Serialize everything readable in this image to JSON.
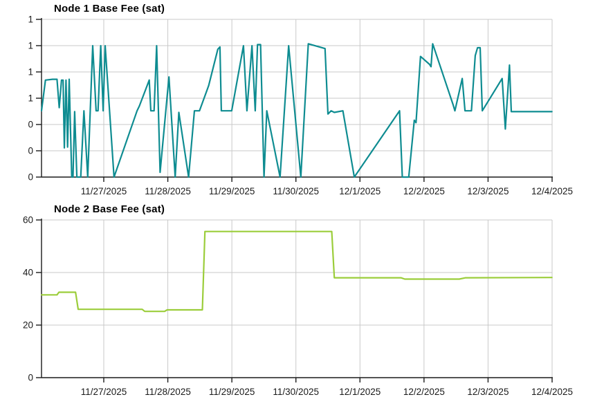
{
  "style": {
    "background": "#ffffff",
    "grid_color": "#c9c9c9",
    "axis_color": "#1a1a1a",
    "text_color": "#1a1a1a",
    "node1_line_color": "#0e8c91",
    "node2_line_color": "#9bcd3a"
  },
  "chart_data": [
    {
      "type": "line",
      "title": "Node 1 Base Fee (sat)",
      "xlabel": "",
      "ylabel": "",
      "legend": "none",
      "grid": "on",
      "x_unit": "days since 11/26/2025 00:00",
      "xlim": [
        0.028,
        8.0
      ],
      "ylim": [
        0,
        1
      ],
      "line_color_key": "node1_line_color",
      "x_ticks": [
        {
          "v": 1,
          "label": "11/27/2025"
        },
        {
          "v": 2,
          "label": "11/28/2025"
        },
        {
          "v": 3,
          "label": "11/29/2025"
        },
        {
          "v": 4,
          "label": "11/30/2025"
        },
        {
          "v": 5,
          "label": "12/1/2025"
        },
        {
          "v": 6,
          "label": "12/2/2025"
        },
        {
          "v": 7,
          "label": "12/3/2025"
        },
        {
          "v": 8,
          "label": "12/4/2025"
        }
      ],
      "y_ticks": [
        {
          "v": 0,
          "label": "0"
        },
        {
          "v": 0.1667,
          "label": "0"
        },
        {
          "v": 0.3333,
          "label": "0"
        },
        {
          "v": 0.5,
          "label": "1"
        },
        {
          "v": 0.6667,
          "label": "1"
        },
        {
          "v": 0.8333,
          "label": "1"
        },
        {
          "v": 1,
          "label": "1"
        }
      ],
      "points": [
        [
          0.028,
          0.42
        ],
        [
          0.09,
          0.615
        ],
        [
          0.2,
          0.62
        ],
        [
          0.27,
          0.62
        ],
        [
          0.305,
          0.44
        ],
        [
          0.34,
          0.615
        ],
        [
          0.365,
          0.615
        ],
        [
          0.385,
          0.185
        ],
        [
          0.41,
          0.615
        ],
        [
          0.435,
          0.19
        ],
        [
          0.46,
          0.62
        ],
        [
          0.5,
          0.0
        ],
        [
          0.52,
          0.0
        ],
        [
          0.545,
          0.415
        ],
        [
          0.58,
          0.0
        ],
        [
          0.64,
          0.0
        ],
        [
          0.69,
          0.42
        ],
        [
          0.75,
          0.0
        ],
        [
          0.827,
          0.833
        ],
        [
          0.88,
          0.42
        ],
        [
          0.91,
          0.42
        ],
        [
          0.953,
          0.833
        ],
        [
          0.99,
          0.42
        ],
        [
          1.022,
          0.833
        ],
        [
          1.16,
          0.0
        ],
        [
          1.52,
          0.42
        ],
        [
          1.555,
          0.45
        ],
        [
          1.71,
          0.615
        ],
        [
          1.735,
          0.42
        ],
        [
          1.785,
          0.42
        ],
        [
          1.826,
          0.833
        ],
        [
          1.88,
          0.03
        ],
        [
          2.018,
          0.635
        ],
        [
          2.115,
          0.0
        ],
        [
          2.172,
          0.41
        ],
        [
          2.325,
          0.0
        ],
        [
          2.415,
          0.42
        ],
        [
          2.494,
          0.42
        ],
        [
          2.638,
          0.58
        ],
        [
          2.78,
          0.81
        ],
        [
          2.814,
          0.825
        ],
        [
          2.836,
          0.42
        ],
        [
          2.998,
          0.42
        ],
        [
          3.181,
          0.833
        ],
        [
          3.235,
          0.42
        ],
        [
          3.314,
          0.833
        ],
        [
          3.365,
          0.42
        ],
        [
          3.4,
          0.84
        ],
        [
          3.448,
          0.84
        ],
        [
          3.502,
          0.0
        ],
        [
          3.545,
          0.42
        ],
        [
          3.753,
          0.0
        ],
        [
          3.886,
          0.833
        ],
        [
          4.077,
          0.0
        ],
        [
          4.193,
          0.845
        ],
        [
          4.455,
          0.815
        ],
        [
          4.5,
          0.4
        ],
        [
          4.55,
          0.42
        ],
        [
          4.6,
          0.41
        ],
        [
          4.733,
          0.42
        ],
        [
          4.912,
          0.0
        ],
        [
          5.618,
          0.42
        ],
        [
          5.661,
          0.0
        ],
        [
          5.762,
          0.0
        ],
        [
          5.848,
          0.36
        ],
        [
          5.875,
          0.345
        ],
        [
          5.945,
          0.765
        ],
        [
          6.086,
          0.715
        ],
        [
          6.11,
          0.7
        ],
        [
          6.136,
          0.845
        ],
        [
          6.453,
          0.46
        ],
        [
          6.482,
          0.42
        ],
        [
          6.597,
          0.625
        ],
        [
          6.64,
          0.42
        ],
        [
          6.741,
          0.42
        ],
        [
          6.8,
          0.77
        ],
        [
          6.835,
          0.82
        ],
        [
          6.877,
          0.82
        ],
        [
          6.91,
          0.42
        ],
        [
          7.22,
          0.625
        ],
        [
          7.27,
          0.305
        ],
        [
          7.335,
          0.71
        ],
        [
          7.363,
          0.415
        ],
        [
          7.997,
          0.415
        ]
      ]
    },
    {
      "type": "line",
      "title": "Node 2 Base Fee (sat)",
      "xlabel": "",
      "ylabel": "",
      "legend": "none",
      "grid": "on",
      "x_unit": "days since 11/26/2025 00:00",
      "xlim": [
        0.028,
        8.0
      ],
      "ylim": [
        0,
        60
      ],
      "line_color_key": "node2_line_color",
      "x_ticks": [
        {
          "v": 1,
          "label": "11/27/2025"
        },
        {
          "v": 2,
          "label": "11/28/2025"
        },
        {
          "v": 3,
          "label": "11/29/2025"
        },
        {
          "v": 4,
          "label": "11/30/2025"
        },
        {
          "v": 5,
          "label": "12/1/2025"
        },
        {
          "v": 6,
          "label": "12/2/2025"
        },
        {
          "v": 7,
          "label": "12/3/2025"
        },
        {
          "v": 8,
          "label": "12/4/2025"
        }
      ],
      "y_ticks": [
        {
          "v": 0,
          "label": "0"
        },
        {
          "v": 20,
          "label": "20"
        },
        {
          "v": 40,
          "label": "40"
        },
        {
          "v": 60,
          "label": "60"
        }
      ],
      "points": [
        [
          0.028,
          31.5
        ],
        [
          0.27,
          31.5
        ],
        [
          0.3,
          32.5
        ],
        [
          0.56,
          32.5
        ],
        [
          0.6,
          26
        ],
        [
          1.6,
          26
        ],
        [
          1.64,
          25.2
        ],
        [
          1.95,
          25.2
        ],
        [
          1.99,
          25.8
        ],
        [
          2.54,
          25.8
        ],
        [
          2.58,
          55.6
        ],
        [
          4.56,
          55.6
        ],
        [
          4.6,
          38
        ],
        [
          5.64,
          38
        ],
        [
          5.7,
          37.5
        ],
        [
          6.55,
          37.5
        ],
        [
          6.65,
          38
        ],
        [
          7.997,
          38.1
        ]
      ]
    }
  ]
}
